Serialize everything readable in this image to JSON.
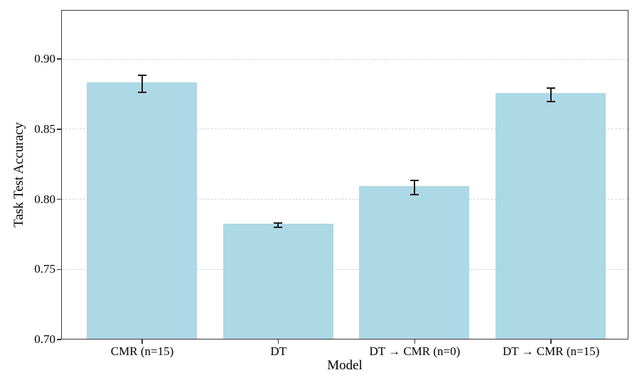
{
  "chart_data": {
    "type": "bar",
    "categories": [
      "CMR (n=15)",
      "DT",
      "DT → CMR (n=0)",
      "DT → CMR (n=15)"
    ],
    "values": [
      0.883,
      0.782,
      0.809,
      0.875
    ],
    "errors": [
      0.006,
      0.0015,
      0.005,
      0.005
    ],
    "xlabel": "Model",
    "ylabel": "Task Test Accuracy",
    "ylim": [
      0.7,
      0.935
    ],
    "yticks": [
      0.7,
      0.75,
      0.8,
      0.85,
      0.9
    ],
    "ytick_labels": [
      "0.70",
      "0.75",
      "0.80",
      "0.85",
      "0.90"
    ],
    "grid": "horizontal dashed, behind bars",
    "legend": "none",
    "colors": {
      "bar_fill": "#ADD8E6",
      "error_bar": "#1c1c1c",
      "spine": "#3a3a3a",
      "gridline": "#d6d6d6",
      "text": "#000000",
      "background": "#ffffff"
    }
  }
}
